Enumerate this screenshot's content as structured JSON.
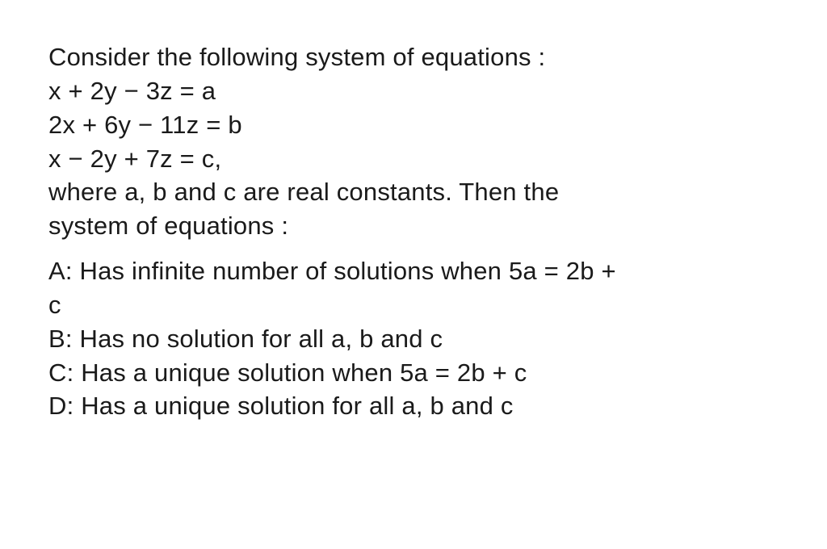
{
  "text_color": "#1a1a1a",
  "background_color": "#ffffff",
  "font_family": "Arial, Helvetica, sans-serif",
  "font_size_pt": 23,
  "line_height": 1.35,
  "stem": {
    "intro": "Consider the following system of equations :",
    "equations": [
      "x + 2y − 3z = a",
      "2x + 6y − 11z = b",
      "x − 2y + 7z = c,"
    ],
    "tail1": "where a, b and c are real constants. Then the",
    "tail2": "system of equations :"
  },
  "options": {
    "A": {
      "line1": "A:  Has infinite number of solutions when 5a = 2b +",
      "line2": "c"
    },
    "B": "B:  Has no solution for all a, b and c",
    "C": "C:  Has a unique solution when 5a = 2b + c",
    "D": "D:  Has a unique solution for all a, b and c"
  }
}
